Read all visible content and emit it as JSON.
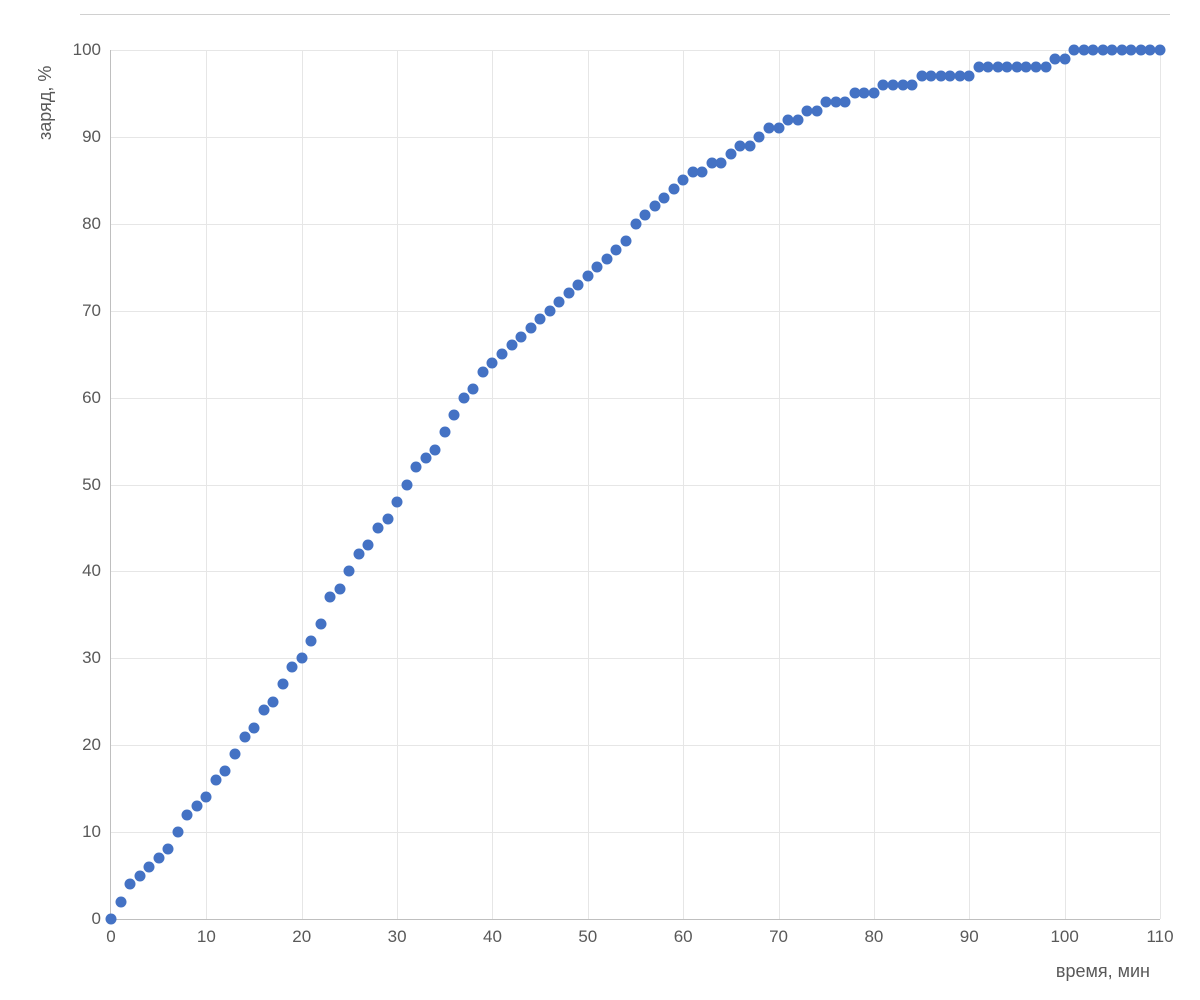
{
  "chart": {
    "type": "scatter",
    "x_axis_title": "время, мин",
    "y_axis_title": "заряд, %",
    "xlim": [
      0,
      110
    ],
    "ylim": [
      0,
      100
    ],
    "xtick_step": 10,
    "ytick_step": 10,
    "xticks": [
      0,
      10,
      20,
      30,
      40,
      50,
      60,
      70,
      80,
      90,
      100,
      110
    ],
    "yticks": [
      0,
      10,
      20,
      30,
      40,
      50,
      60,
      70,
      80,
      90,
      100
    ],
    "label_fontsize": 17,
    "title_fontsize": 18,
    "tick_color": "#595959",
    "grid_color": "#e6e6e6",
    "axis_color": "#bfbfbf",
    "background_color": "#ffffff",
    "marker_color": "#4472c4",
    "marker_size": 11,
    "series": {
      "x": [
        0,
        1,
        2,
        3,
        4,
        5,
        6,
        7,
        8,
        9,
        10,
        11,
        12,
        13,
        14,
        15,
        16,
        17,
        18,
        19,
        20,
        21,
        22,
        23,
        24,
        25,
        26,
        27,
        28,
        29,
        30,
        31,
        32,
        33,
        34,
        35,
        36,
        37,
        38,
        39,
        40,
        41,
        42,
        43,
        44,
        45,
        46,
        47,
        48,
        49,
        50,
        51,
        52,
        53,
        54,
        55,
        56,
        57,
        58,
        59,
        60,
        61,
        62,
        63,
        64,
        65,
        66,
        67,
        68,
        69,
        70,
        71,
        72,
        73,
        74,
        75,
        76,
        77,
        78,
        79,
        80,
        81,
        82,
        83,
        84,
        85,
        86,
        87,
        88,
        89,
        90,
        91,
        92,
        93,
        94,
        95,
        96,
        97,
        98,
        99,
        100,
        101,
        102,
        103,
        104,
        105,
        106,
        107,
        108,
        109,
        110
      ],
      "y": [
        0,
        2,
        4,
        5,
        6,
        7,
        8,
        10,
        12,
        13,
        14,
        16,
        17,
        19,
        21,
        22,
        24,
        25,
        27,
        29,
        30,
        32,
        34,
        37,
        38,
        40,
        42,
        43,
        45,
        46,
        48,
        50,
        52,
        53,
        54,
        56,
        58,
        60,
        61,
        63,
        64,
        65,
        66,
        67,
        68,
        69,
        70,
        71,
        72,
        73,
        74,
        75,
        76,
        77,
        78,
        80,
        81,
        82,
        83,
        84,
        85,
        86,
        86,
        87,
        87,
        88,
        89,
        89,
        90,
        91,
        91,
        92,
        92,
        93,
        93,
        94,
        94,
        94,
        95,
        95,
        95,
        96,
        96,
        96,
        96,
        97,
        97,
        97,
        97,
        97,
        97,
        98,
        98,
        98,
        98,
        98,
        98,
        98,
        98,
        99,
        99,
        100,
        100,
        100,
        100,
        100,
        100,
        100,
        100,
        100,
        100
      ]
    }
  }
}
